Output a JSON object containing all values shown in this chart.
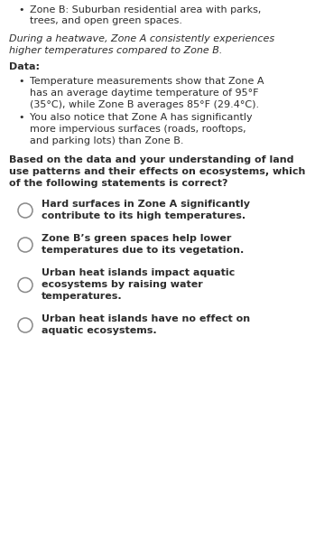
{
  "bg_color": "#ffffff",
  "text_color": "#2d2d2d",
  "circle_color": "#888888",
  "bullet_line1": "Zone B: Suburban residential area with parks,",
  "bullet_line2": "trees, and open green spaces.",
  "italic_line1": "During a heatwave, Zone A consistently experiences",
  "italic_line2": "higher temperatures compared to Zone B.",
  "data_label": "Data:",
  "db1_line1": "Temperature measurements show that Zone A",
  "db1_line2": "has an average daytime temperature of 95°F",
  "db1_line3": "(35°C), while Zone B averages 85°F (29.4°C).",
  "db2_line1": "You also notice that Zone A has significantly",
  "db2_line2": "more impervious surfaces (roads, rooftops,",
  "db2_line3": "and parking lots) than Zone B.",
  "q_line1": "Based on the data and your understanding of land",
  "q_line2": "use patterns and their effects on ecosystems, which",
  "q_line3": "of the following statements is correct?",
  "opt1_line1": "Hard surfaces in Zone A significantly",
  "opt1_line2": "contribute to its high temperatures.",
  "opt2_line1": "Zone B’s green spaces help lower",
  "opt2_line2": "temperatures due to its vegetation.",
  "opt3_line1": "Urban heat islands impact aquatic",
  "opt3_line2": "ecosystems by raising water",
  "opt3_line3": "temperatures.",
  "opt4_line1": "Urban heat islands have no effect on",
  "opt4_line2": "aquatic ecosystems.",
  "fs": 8.0,
  "fs_bold": 8.0,
  "fs_italic": 8.0
}
